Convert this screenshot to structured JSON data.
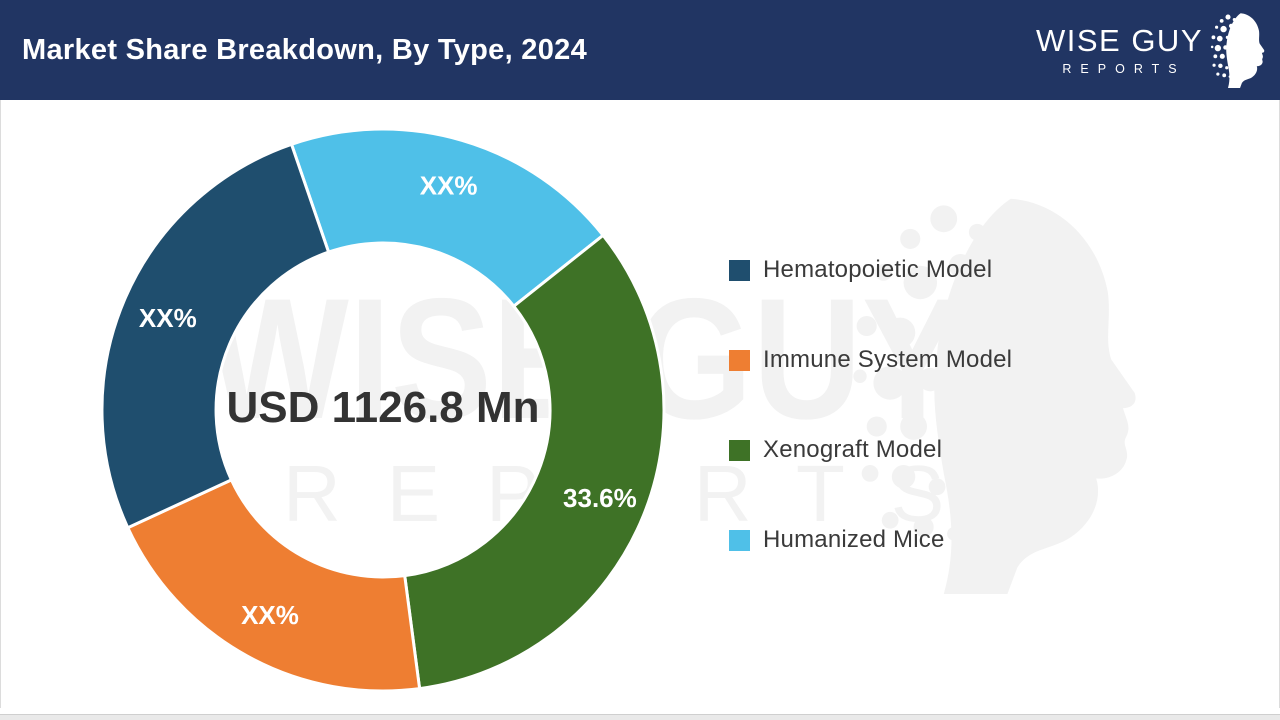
{
  "header": {
    "title": "Market Share Breakdown, By Type, 2024",
    "logo": {
      "name_line": "WISE GUY",
      "sub_line": "REPORTS"
    }
  },
  "watermark": {
    "line1": "WISE GUY",
    "line2": "REPORTS"
  },
  "colors": {
    "header_bg": "#213563",
    "hematopoietic": "#1f4e6e",
    "immune_system": "#ee7e32",
    "xenograft": "#3e7226",
    "humanized_mice": "#4fc0e8",
    "center_text": "#333333",
    "legend_text": "#3a3a3a",
    "watermark": "#f2f2f2"
  },
  "chart_data": {
    "type": "pie",
    "subtype": "donut",
    "title": "Market Share Breakdown, By Type, 2024",
    "center_label": "USD 1126.8 Mn",
    "legend_position": "right",
    "start_angle_deg": 341,
    "clockwise": true,
    "draw_order": [
      3,
      2,
      1,
      0
    ],
    "segments": [
      {
        "label": "Hematopoietic Model",
        "display_value": "XX%",
        "percent_estimate": 26.6,
        "value_shown_as_number": false,
        "color": "#1f4e6e"
      },
      {
        "label": "Immune System Model",
        "display_value": "XX%",
        "percent_estimate": 20.2,
        "value_shown_as_number": false,
        "color": "#ee7e32"
      },
      {
        "label": "Xenograft Model",
        "display_value": "33.6%",
        "percent_estimate": 33.6,
        "value_shown_as_number": true,
        "color": "#3e7226"
      },
      {
        "label": "Humanized Mice",
        "display_value": "XX%",
        "percent_estimate": 19.6,
        "value_shown_as_number": false,
        "color": "#4fc0e8"
      }
    ]
  }
}
